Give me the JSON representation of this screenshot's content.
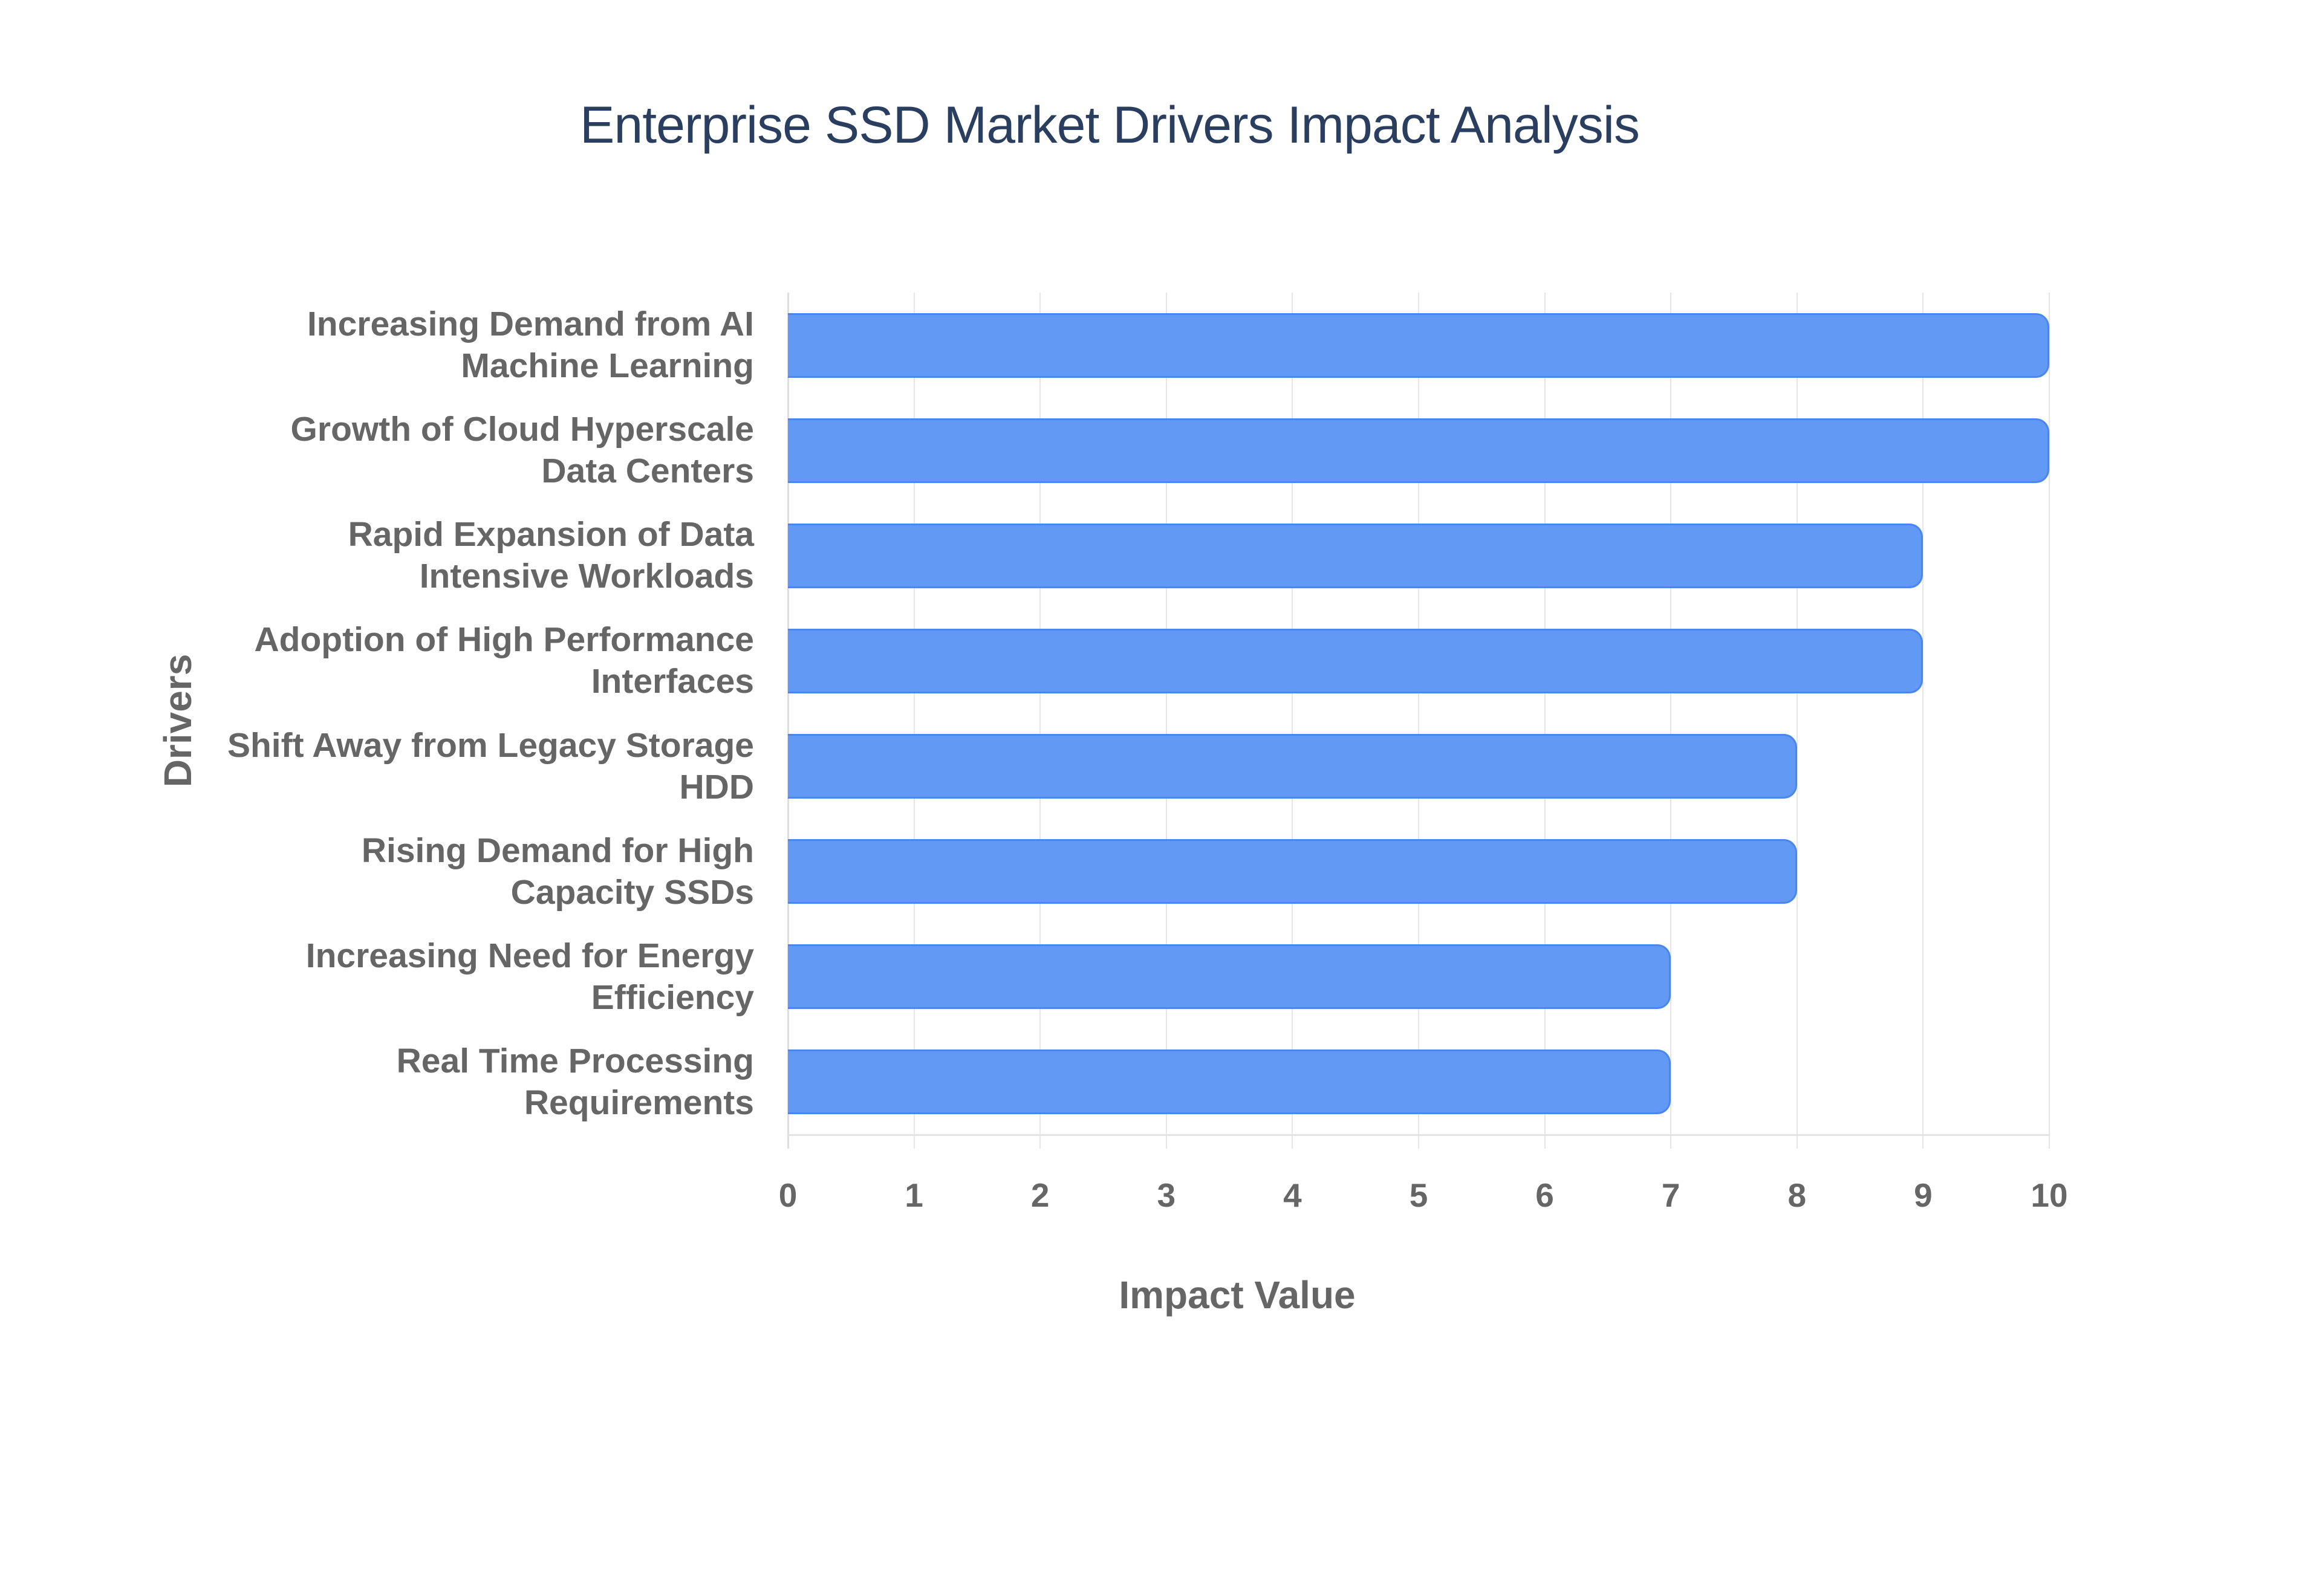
{
  "chart_data": {
    "type": "bar",
    "orientation": "horizontal",
    "title": "Enterprise SSD Market Drivers Impact Analysis",
    "xlabel": "Impact Value",
    "ylabel": "Drivers",
    "xlim": [
      0,
      10
    ],
    "xticks": [
      "0",
      "1",
      "2",
      "3",
      "4",
      "5",
      "6",
      "7",
      "8",
      "9",
      "10"
    ],
    "grid": true,
    "legend": null,
    "bar_color": "#6199f4",
    "bar_border_color": "#4a86ec",
    "categories": [
      [
        "Increasing Demand from AI",
        "Machine Learning"
      ],
      [
        "Growth of Cloud Hyperscale",
        "Data Centers"
      ],
      [
        "Rapid Expansion of Data",
        "Intensive Workloads"
      ],
      [
        "Adoption of High Performance",
        "Interfaces"
      ],
      [
        "Shift Away from Legacy Storage",
        "HDD"
      ],
      [
        "Rising Demand for High",
        "Capacity SSDs"
      ],
      [
        "Increasing Need for Energy",
        "Efficiency"
      ],
      [
        "Real Time Processing",
        "Requirements"
      ]
    ],
    "values": [
      10,
      10,
      9,
      9,
      8,
      8,
      7,
      7
    ]
  }
}
